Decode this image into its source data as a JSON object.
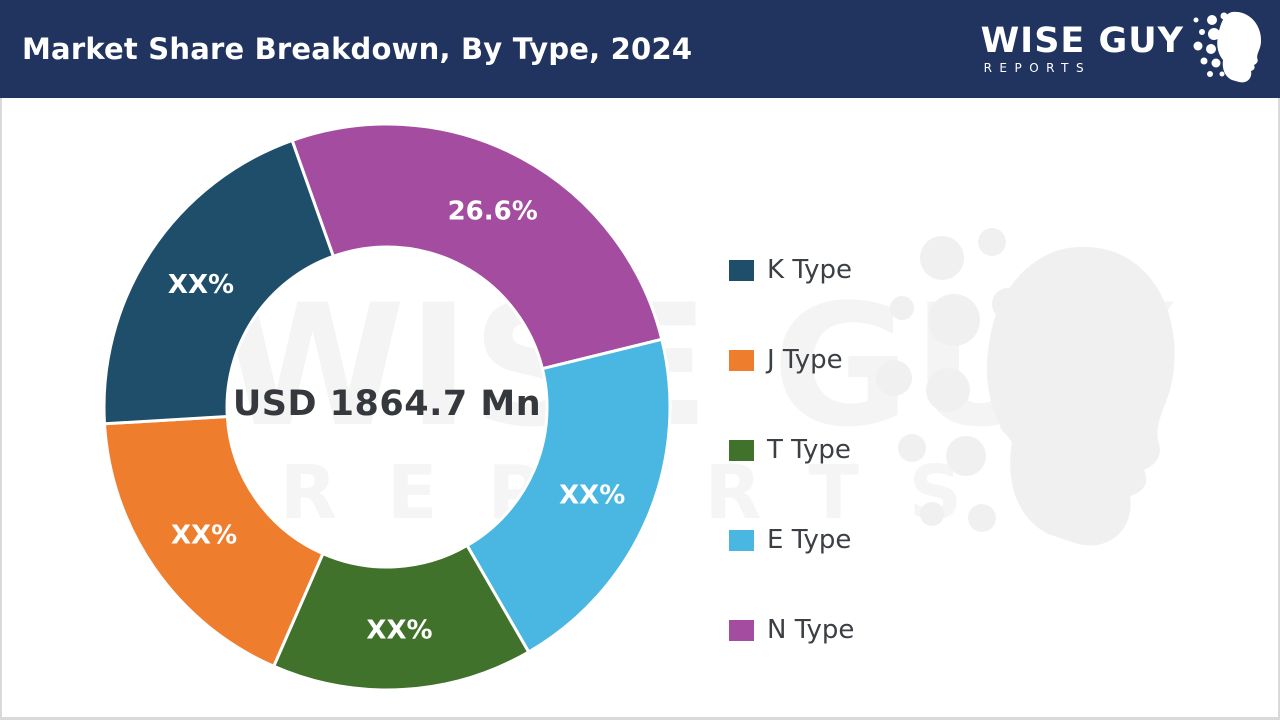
{
  "header": {
    "title": "Market Share Breakdown, By Type, 2024",
    "logo": {
      "name": "WISE GUY",
      "sub": "REPORTS"
    }
  },
  "watermark": {
    "line1": "WISE GUY",
    "line2": "REPORTS"
  },
  "chart_data": {
    "type": "donut",
    "title": "Market Share Breakdown, By Type, 2024",
    "center_label": "USD 1864.7 Mn",
    "slices": [
      {
        "label": "K Type",
        "value": 20.5,
        "text": "XX%",
        "color": "#1f4e6b"
      },
      {
        "label": "J Type",
        "value": 17.5,
        "text": "XX%",
        "color": "#ee7d2e"
      },
      {
        "label": "T Type",
        "value": 14.9,
        "text": "XX%",
        "color": "#41722b"
      },
      {
        "label": "E Type",
        "value": 20.5,
        "text": "XX%",
        "color": "#4ab6e2"
      },
      {
        "label": "N Type",
        "value": 26.6,
        "text": "26.6%",
        "color": "#a44da0"
      }
    ],
    "draw_order": [
      4,
      3,
      2,
      1,
      0
    ],
    "start_angle_deg": -19.6,
    "geometry": {
      "outer_radius": 283,
      "inner_radius": 160,
      "label_radius": 223
    },
    "legend_position": "right",
    "colors": {
      "header_bg": "#21345f",
      "center_text": "#35383c",
      "legend_text": "#3c4045",
      "slice_label_text": "#ffffff",
      "watermark": "#f4f4f4",
      "border": "#d9d9d9"
    }
  }
}
